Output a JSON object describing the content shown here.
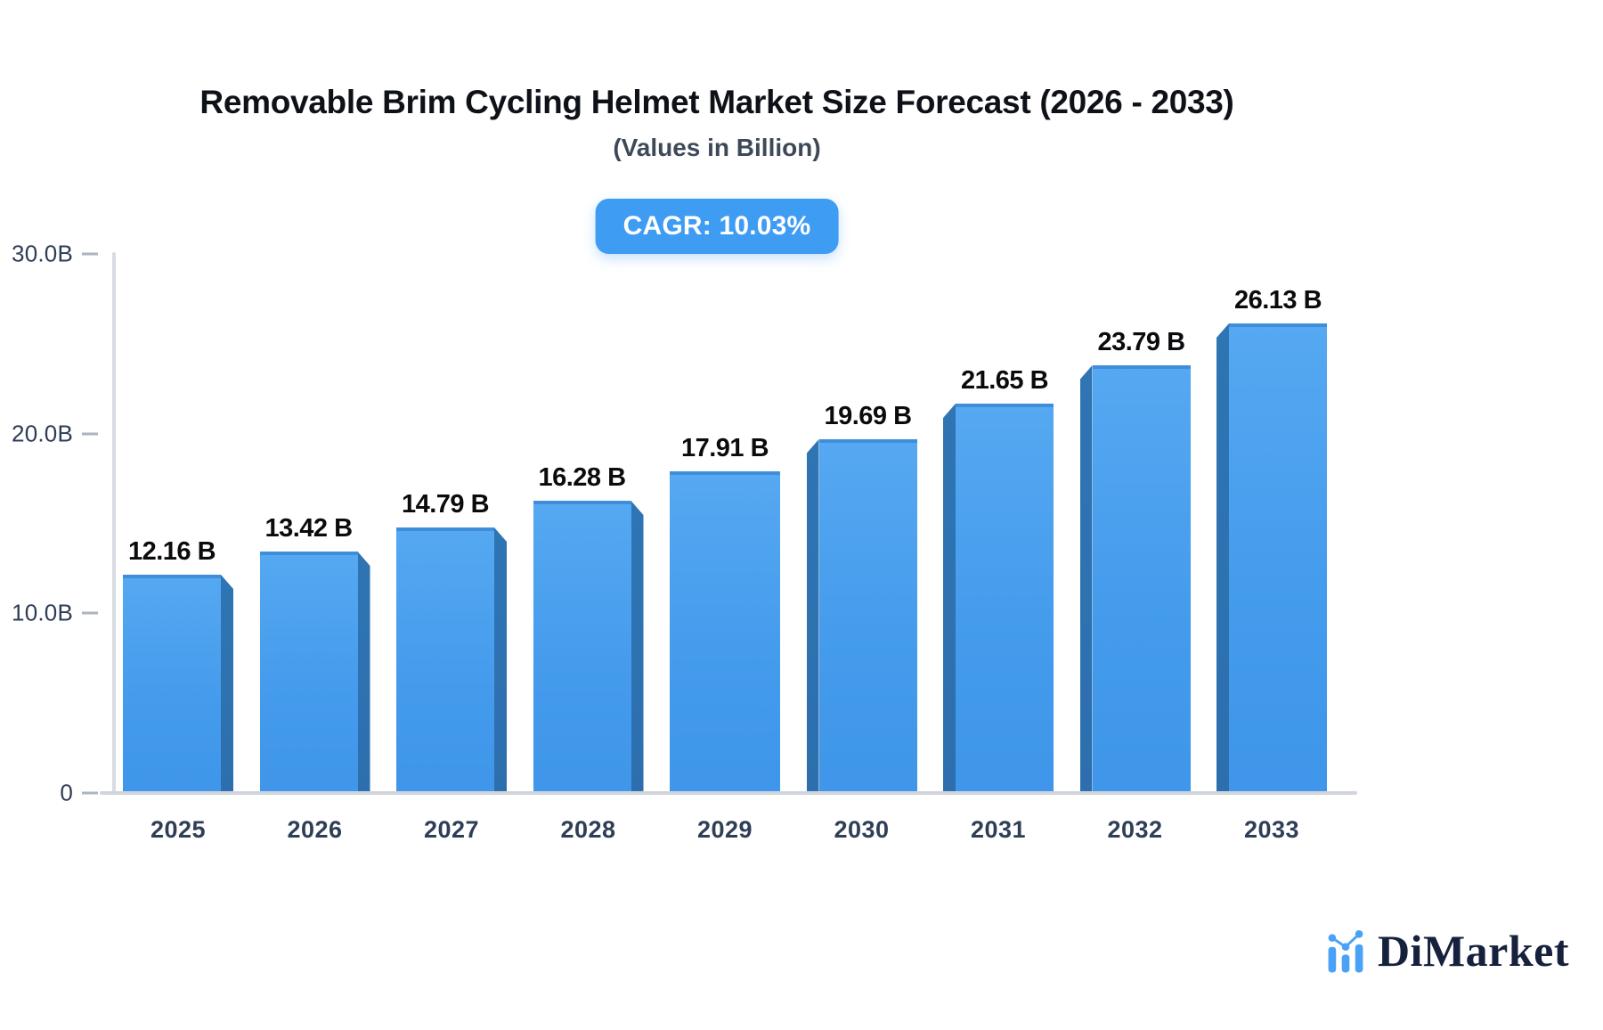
{
  "header": {
    "title": "Removable Brim Cycling Helmet Market Size Forecast (2026 - 2033)",
    "subtitle": "(Values in Billion)",
    "cagr_badge": "CAGR: 10.03%"
  },
  "chart_data": {
    "type": "bar",
    "title": "Removable Brim Cycling Helmet Market Size Forecast (2026 - 2033)",
    "subtitle": "(Values in Billion)",
    "annotation": "CAGR: 10.03%",
    "categories": [
      "2025",
      "2026",
      "2027",
      "2028",
      "2029",
      "2030",
      "2031",
      "2032",
      "2033"
    ],
    "values": [
      12.16,
      13.42,
      14.79,
      16.28,
      17.91,
      19.69,
      21.65,
      23.79,
      26.13
    ],
    "value_labels": [
      "12.16 B",
      "13.42 B",
      "14.79 B",
      "16.28 B",
      "17.91 B",
      "19.69 B",
      "21.65 B",
      "23.79 B",
      "26.13 B"
    ],
    "unit": "Billion",
    "xlabel": "",
    "ylabel": "",
    "ylim": [
      0,
      30
    ],
    "yticks": [
      {
        "value": 30,
        "label": "30.0B"
      },
      {
        "value": 20,
        "label": "20.0B"
      },
      {
        "value": 10,
        "label": "10.0B"
      },
      {
        "value": 0,
        "label": "0"
      }
    ],
    "grid": false,
    "legend": null,
    "bar_style": "pseudo-3d, side face on right for bars left of center, on left for bars right of center, flat for center bar"
  },
  "branding": {
    "logo_text": "DiMarket",
    "logo_icon": "bar-chart-trend-icon"
  },
  "colors": {
    "badge_bg": "#3f9cf3",
    "badge_text": "#ffffff",
    "bar_main": "#449bec",
    "bar_main_light": "#55a8f1",
    "bar_side": "#2f75b3",
    "bar_top_edge": "#3e8ed9",
    "axis_line": "#d8dce2",
    "tick_mark": "#adb4bd",
    "tick_label": "#2e3c55",
    "year_label": "#2f3e57",
    "value_label": "#0b0b0e",
    "title": "#0e1118",
    "subtitle": "#3e4958",
    "logo_text_color": "#16223d",
    "logo_icon_color": "#4aa2f6"
  }
}
